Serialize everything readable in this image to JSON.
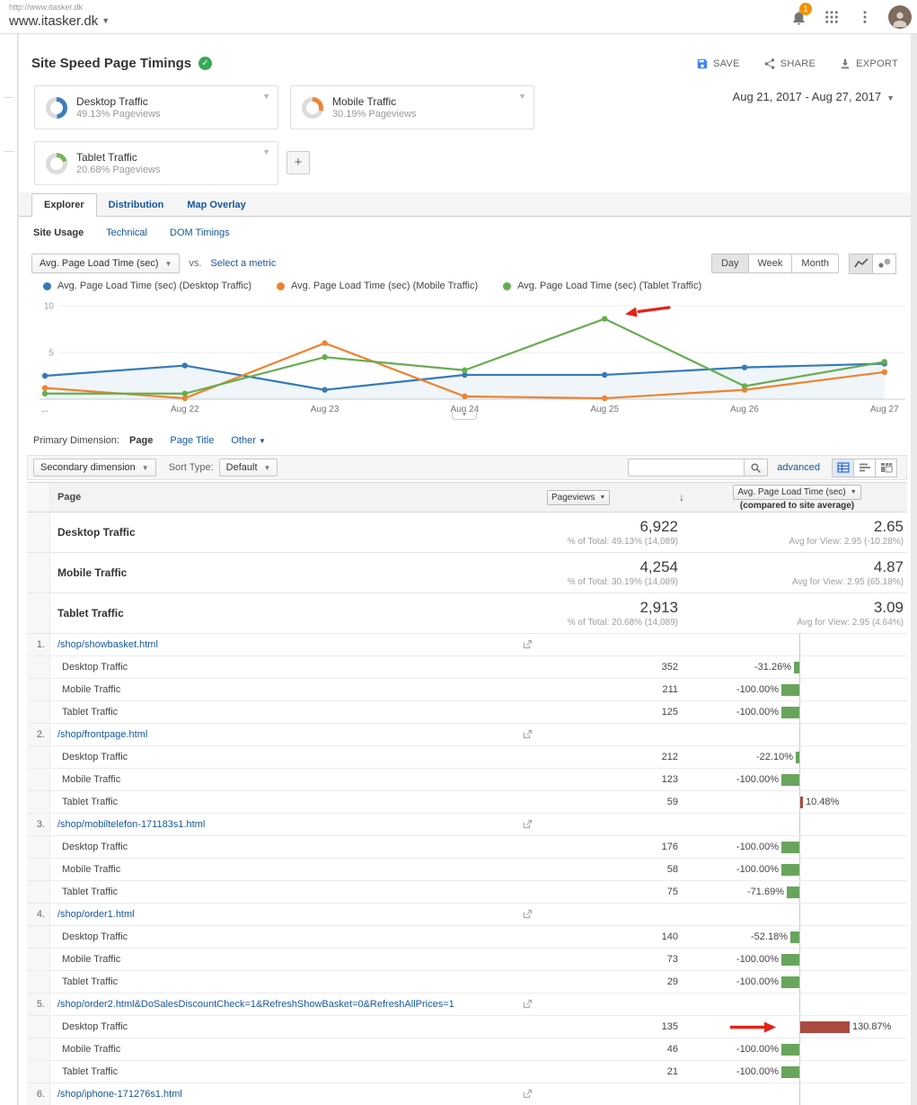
{
  "topbar": {
    "url": "http://www.itasker.dk",
    "account_name": "www.itasker.dk",
    "notification_count": "1"
  },
  "report": {
    "title": "Site Speed Page Timings",
    "actions": {
      "save": "SAVE",
      "share": "SHARE",
      "export": "EXPORT"
    },
    "date_range": "Aug 21, 2017 - Aug 27, 2017"
  },
  "segments": [
    {
      "name": "Desktop Traffic",
      "detail": "49.13% Pageviews",
      "pct": 49.13,
      "color": "#3c7dbc"
    },
    {
      "name": "Mobile Traffic",
      "detail": "30.19% Pageviews",
      "pct": 30.19,
      "color": "#ef8633"
    },
    {
      "name": "Tablet Traffic",
      "detail": "20.68% Pageviews",
      "pct": 20.68,
      "color": "#7ab55c"
    }
  ],
  "tabs": [
    "Explorer",
    "Distribution",
    "Map Overlay"
  ],
  "subtabs": [
    "Site Usage",
    "Technical",
    "DOM Timings"
  ],
  "metric_bar": {
    "metric_selector": "Avg. Page Load Time (sec)",
    "vs_label": "vs.",
    "select_metric": "Select a metric",
    "granularity": [
      "Day",
      "Week",
      "Month"
    ],
    "granularity_selected": "Day"
  },
  "legend": [
    {
      "label": "Avg. Page Load Time (sec) (Desktop Traffic)",
      "color": "#357ab7"
    },
    {
      "label": "Avg. Page Load Time (sec) (Mobile Traffic)",
      "color": "#ee8331"
    },
    {
      "label": "Avg. Page Load Time (sec) (Tablet Traffic)",
      "color": "#66ad4f"
    }
  ],
  "chart_data": {
    "type": "line",
    "x": [
      "...",
      "Aug 22",
      "Aug 23",
      "Aug 24",
      "Aug 25",
      "Aug 26",
      "Aug 27"
    ],
    "ylim": [
      0,
      10
    ],
    "yticks": [
      5,
      10
    ],
    "series": [
      {
        "name": "Avg. Page Load Time (sec) (Desktop Traffic)",
        "color": "#357ab7",
        "area": true,
        "values": [
          2.5,
          3.6,
          1.0,
          2.6,
          2.6,
          3.4,
          3.8
        ]
      },
      {
        "name": "Avg. Page Load Time (sec) (Mobile Traffic)",
        "color": "#ee8331",
        "values": [
          1.2,
          0.1,
          6.0,
          0.3,
          0.1,
          1.0,
          2.9
        ]
      },
      {
        "name": "Avg. Page Load Time (sec) (Tablet Traffic)",
        "color": "#66ad4f",
        "values": [
          0.6,
          0.6,
          4.5,
          3.1,
          8.6,
          1.4,
          4.0
        ]
      }
    ],
    "annotation": {
      "type": "arrow",
      "target": "Tablet Traffic peak on Aug 25",
      "color": "#e62117"
    }
  },
  "dimension_bar": {
    "label": "Primary Dimension:",
    "options": [
      "Page",
      "Page Title",
      "Other"
    ],
    "selected": "Page"
  },
  "toolbar": {
    "secondary_dimension": "Secondary dimension",
    "sort_type_label": "Sort Type:",
    "sort_type_value": "Default",
    "search_value": "",
    "advanced_label": "advanced"
  },
  "table": {
    "columns": {
      "page": "Page",
      "pageviews": "Pageviews",
      "metric": "Avg. Page Load Time (sec)",
      "metric_subtitle": "(compared to site average)"
    },
    "bar_colors": {
      "negative": "#68a55c",
      "positive": "#aa4a41"
    },
    "arrow_color": "#e62117",
    "summary": [
      {
        "label": "Desktop Traffic",
        "pageviews": "6,922",
        "pageviews_sub": "% of Total: 49.13% (14,089)",
        "value": "2.65",
        "value_sub": "Avg for View: 2.95 (-10.28%)"
      },
      {
        "label": "Mobile Traffic",
        "pageviews": "4,254",
        "pageviews_sub": "% of Total: 30.19% (14,089)",
        "value": "4.87",
        "value_sub": "Avg for View: 2.95 (65.18%)"
      },
      {
        "label": "Tablet Traffic",
        "pageviews": "2,913",
        "pageviews_sub": "% of Total: 20.68% (14,089)",
        "value": "3.09",
        "value_sub": "Avg for View: 2.95 (4.64%)"
      }
    ],
    "groups": [
      {
        "index": "1.",
        "url": "/shop/showbasket.html",
        "rows": [
          {
            "label": "Desktop Traffic",
            "pageviews": "352",
            "pct": -31.26,
            "pct_label": "-31.26%"
          },
          {
            "label": "Mobile Traffic",
            "pageviews": "211",
            "pct": -100.0,
            "pct_label": "-100.00%"
          },
          {
            "label": "Tablet Traffic",
            "pageviews": "125",
            "pct": -100.0,
            "pct_label": "-100.00%"
          }
        ]
      },
      {
        "index": "2.",
        "url": "/shop/frontpage.html",
        "rows": [
          {
            "label": "Desktop Traffic",
            "pageviews": "212",
            "pct": -22.1,
            "pct_label": "-22.10%"
          },
          {
            "label": "Mobile Traffic",
            "pageviews": "123",
            "pct": -100.0,
            "pct_label": "-100.00%"
          },
          {
            "label": "Tablet Traffic",
            "pageviews": "59",
            "pct": 10.48,
            "pct_label": "10.48%"
          }
        ]
      },
      {
        "index": "3.",
        "url": "/shop/mobiltelefon-171183s1.html",
        "rows": [
          {
            "label": "Desktop Traffic",
            "pageviews": "176",
            "pct": -100.0,
            "pct_label": "-100.00%"
          },
          {
            "label": "Mobile Traffic",
            "pageviews": "58",
            "pct": -100.0,
            "pct_label": "-100.00%"
          },
          {
            "label": "Tablet Traffic",
            "pageviews": "75",
            "pct": -71.69,
            "pct_label": "-71.69%"
          }
        ]
      },
      {
        "index": "4.",
        "url": "/shop/order1.html",
        "rows": [
          {
            "label": "Desktop Traffic",
            "pageviews": "140",
            "pct": -52.18,
            "pct_label": "-52.18%"
          },
          {
            "label": "Mobile Traffic",
            "pageviews": "73",
            "pct": -100.0,
            "pct_label": "-100.00%"
          },
          {
            "label": "Tablet Traffic",
            "pageviews": "29",
            "pct": -100.0,
            "pct_label": "-100.00%"
          }
        ]
      },
      {
        "index": "5.",
        "url": "/shop/order2.html&DoSalesDiscountCheck=1&RefreshShowBasket=0&RefreshAllPrices=1",
        "rows": [
          {
            "label": "Desktop Traffic",
            "pageviews": "135",
            "pct": 130.87,
            "pct_label": "130.87%",
            "arrow": true
          },
          {
            "label": "Mobile Traffic",
            "pageviews": "46",
            "pct": -100.0,
            "pct_label": "-100.00%"
          },
          {
            "label": "Tablet Traffic",
            "pageviews": "21",
            "pct": -100.0,
            "pct_label": "-100.00%"
          }
        ]
      },
      {
        "index": "6.",
        "url": "/shop/iphone-171276s1.html",
        "rows": []
      }
    ]
  }
}
